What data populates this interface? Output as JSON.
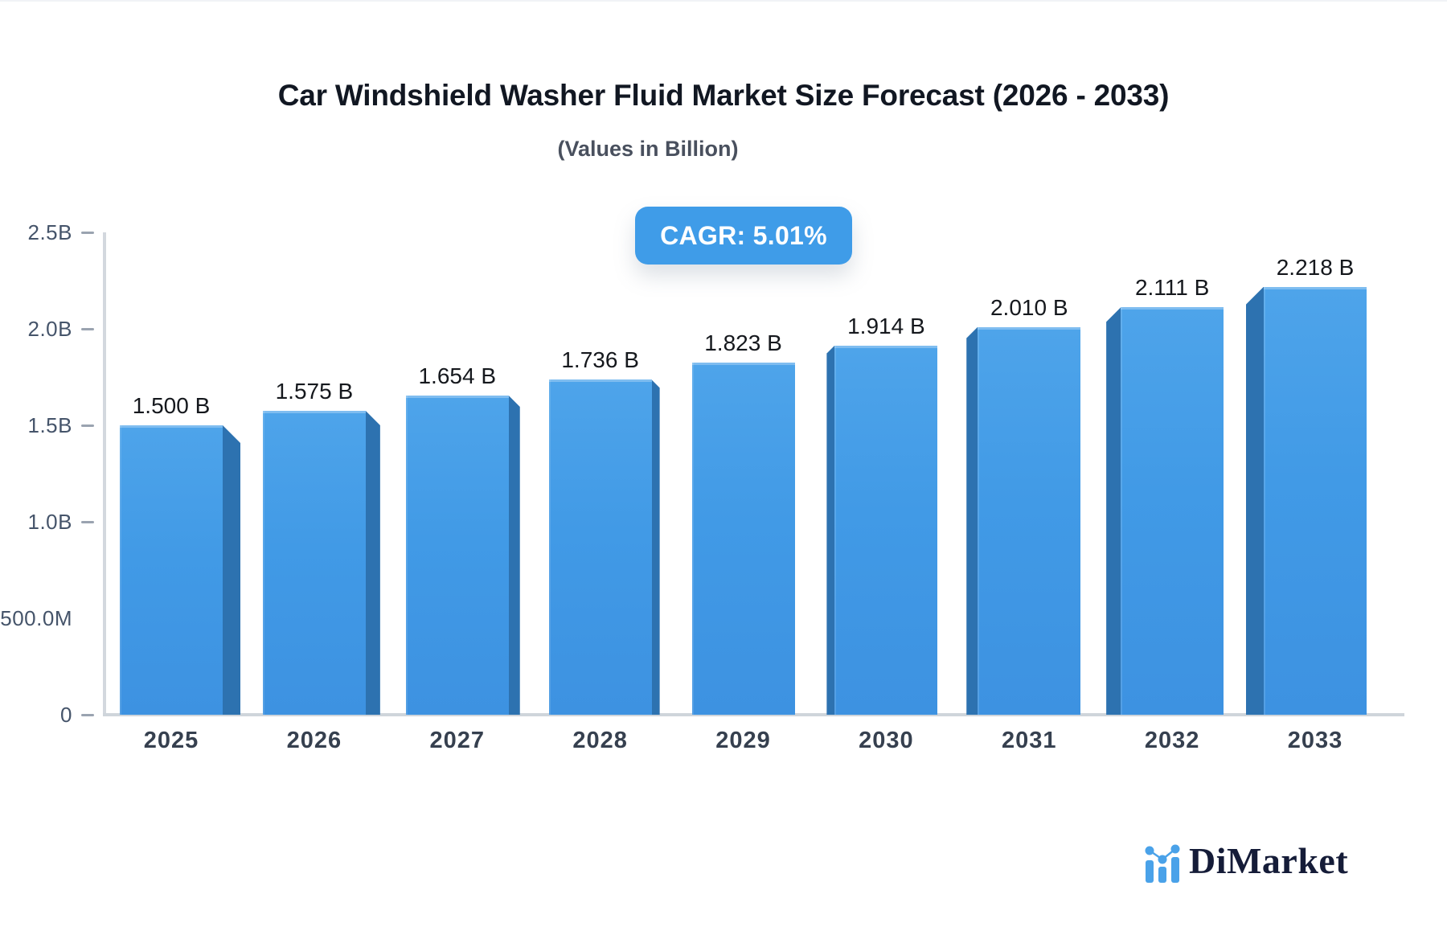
{
  "page": {
    "title": "Car Windshield Washer Fluid Market Size Forecast (2026 - 2033)",
    "subtitle": "(Values in Billion)",
    "cagr_badge": "CAGR: 5.01%"
  },
  "chart_data": {
    "type": "bar",
    "title": "Car Windshield Washer Fluid Market Size Forecast (2026 - 2033)",
    "subtitle": "(Values in Billion)",
    "annotation": "CAGR: 5.01%",
    "categories": [
      "2025",
      "2026",
      "2027",
      "2028",
      "2029",
      "2030",
      "2031",
      "2032",
      "2033"
    ],
    "values": [
      1.5,
      1.575,
      1.654,
      1.736,
      1.823,
      1.914,
      2.01,
      2.111,
      2.218
    ],
    "value_labels": [
      "1.500 B",
      "1.575 B",
      "1.654 B",
      "1.736 B",
      "1.823 B",
      "1.914 B",
      "2.010 B",
      "2.111 B",
      "2.218 B"
    ],
    "xlabel": "",
    "ylabel": "",
    "ylim": [
      0,
      2.5
    ],
    "grid": false,
    "legend": false,
    "y_ticks": [
      {
        "label": "0",
        "value": 0,
        "dash": true
      },
      {
        "label": "500.0M",
        "value": 0.5,
        "dash": false
      },
      {
        "label": "1.0B",
        "value": 1.0,
        "dash": true
      },
      {
        "label": "1.5B",
        "value": 1.5,
        "dash": true
      },
      {
        "label": "2.0B",
        "value": 2.0,
        "dash": true
      },
      {
        "label": "2.5B",
        "value": 2.5,
        "dash": true
      }
    ],
    "colors": {
      "bar_face": "#429be6",
      "bar_side": "#2d72b0",
      "badge_background": "#3f9ce8",
      "badge_text": "#ffffff",
      "title_text": "#111722",
      "axis_text": "#45546a",
      "category_text": "#36404f",
      "axis_line": "#d3d8de"
    }
  },
  "branding": {
    "logo_text": "DiMarket",
    "logo_icon": "bar-line-chart-icon",
    "logo_icon_color": "#4aa2e9",
    "logo_text_color": "#151c38"
  }
}
